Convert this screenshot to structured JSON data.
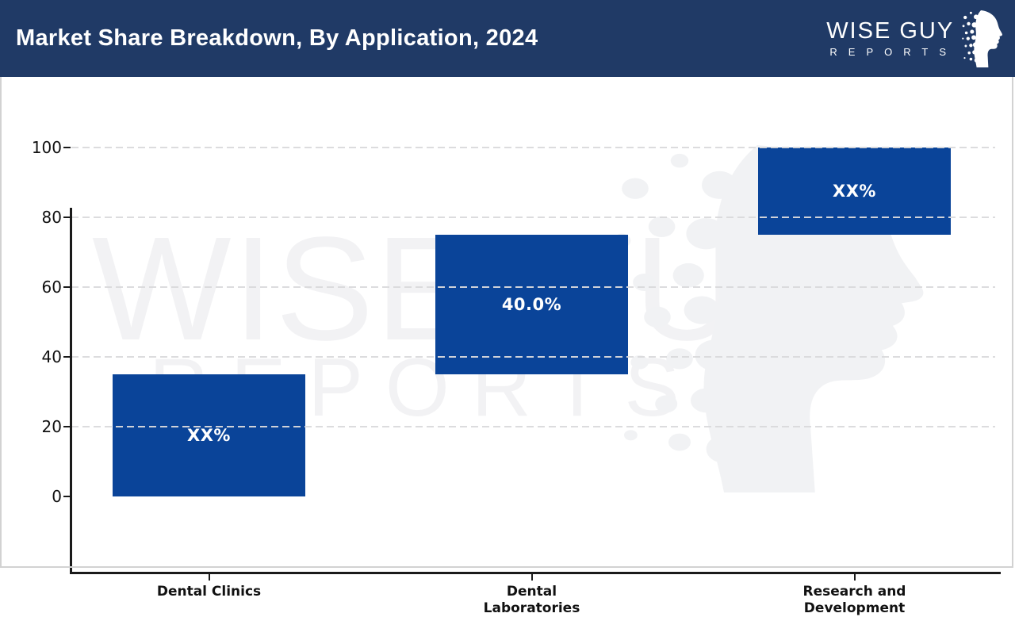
{
  "header": {
    "title": "Market Share Breakdown, By Application, 2024",
    "logo_line1": "WISE GUY",
    "logo_line2": "REPORTS"
  },
  "watermark": {
    "line1": "WISE GUY",
    "line2": "REPORTS"
  },
  "chart_data": {
    "type": "bar",
    "variant": "floating-waterfall",
    "title": "Market Share Breakdown, By Application, 2024",
    "categories": [
      "Dental Clinics",
      "Dental\nLaboratories",
      "Research and\nDevelopment"
    ],
    "series": [
      {
        "name": "Market Share",
        "ranges": [
          [
            0,
            35
          ],
          [
            35,
            75
          ],
          [
            75,
            100
          ]
        ],
        "values": [
          35,
          40,
          25
        ],
        "labels": [
          "XX%",
          "40.0%",
          "XX%"
        ]
      }
    ],
    "ylim": [
      0,
      100
    ],
    "yticks": [
      0,
      20,
      40,
      60,
      80,
      100
    ],
    "grid": {
      "axis": "y",
      "style": "dashed",
      "color": "#d9d9d9",
      "above_bars": true
    },
    "legend": "none",
    "bar_color": "#0a4499",
    "bar_label_color": "#ffffff",
    "axis_color": "#1a1a1a"
  },
  "colors": {
    "header_bg": "#203a66",
    "bar": "#0a4499",
    "watermark": "#f2f2f4",
    "border": "#d2d2d2"
  }
}
